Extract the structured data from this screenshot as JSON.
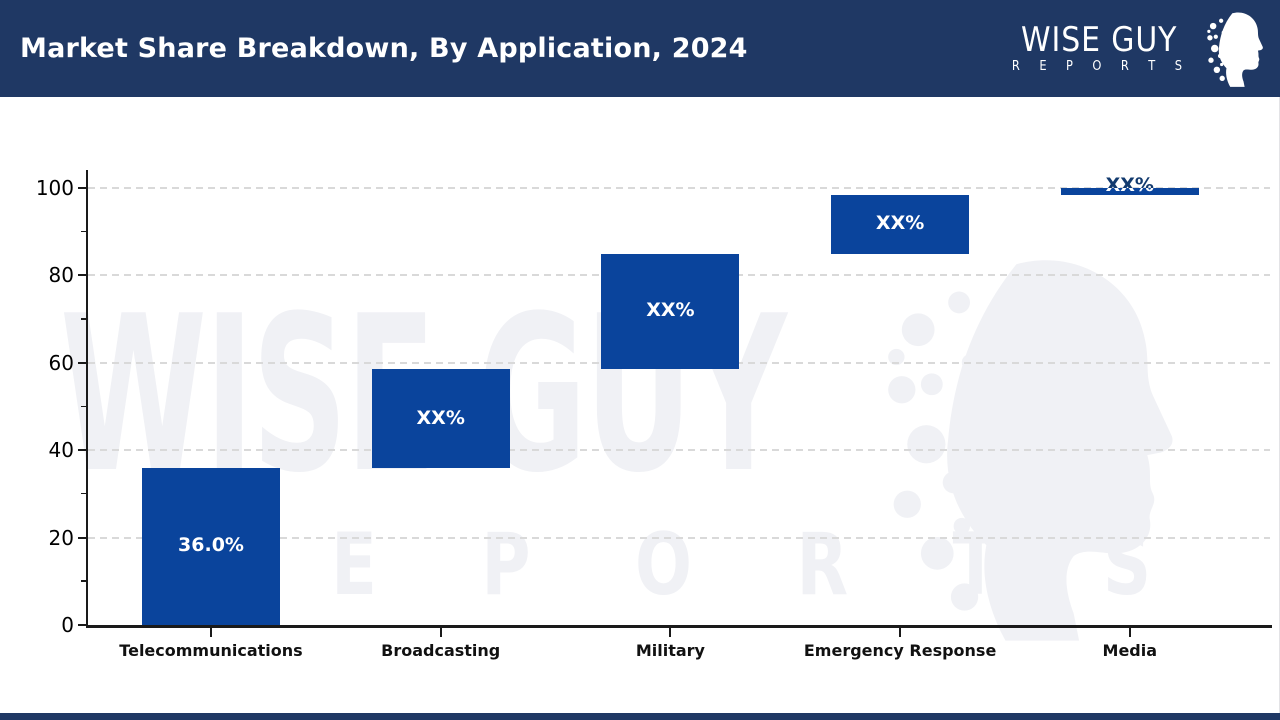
{
  "header": {
    "title": "Market Share Breakdown, By Application, 2024",
    "logo_line1": "WISE GUY",
    "logo_line2": "R E P O R T S"
  },
  "watermark": {
    "line1": "WISE GUY",
    "line2": "R E P O R T S"
  },
  "chart_data": {
    "type": "bar",
    "variant": "waterfall-stacked-progression",
    "title": "Market Share Breakdown, By Application, 2024",
    "categories": [
      "Telecommunications",
      "Broadcasting",
      "Military",
      "Emergency Response",
      "Media"
    ],
    "segments": [
      {
        "category": "Telecommunications",
        "start": 0,
        "end": 36,
        "value": 36.0,
        "label": "36.0%",
        "overflow": false
      },
      {
        "category": "Broadcasting",
        "start": 36,
        "end": 58.5,
        "value": 22.5,
        "label": "XX%",
        "overflow": false
      },
      {
        "category": "Military",
        "start": 58.5,
        "end": 85,
        "value": 26.5,
        "label": "XX%",
        "overflow": false
      },
      {
        "category": "Emergency Response",
        "start": 85,
        "end": 98.5,
        "value": 13.5,
        "label": "XX%",
        "overflow": false
      },
      {
        "category": "Media",
        "start": 98.5,
        "end": 100,
        "value": 1.5,
        "label": "XX%",
        "overflow": true
      }
    ],
    "xlabel": "",
    "ylabel": "",
    "ylim": [
      0,
      100
    ],
    "yticks": [
      0,
      20,
      40,
      60,
      80,
      100
    ],
    "grid": "horizontal dashed",
    "legend": "none",
    "bar_color": "#0a449c",
    "bar_label_color": "#ffffff"
  },
  "colors": {
    "header_bg": "#1f3864",
    "footer_bg": "#1f3864",
    "bar": "#0a449c",
    "grid": "#d9d9d9",
    "axis": "#1a1a1a",
    "watermark": "#f0f1f5",
    "title_text": "#ffffff"
  }
}
